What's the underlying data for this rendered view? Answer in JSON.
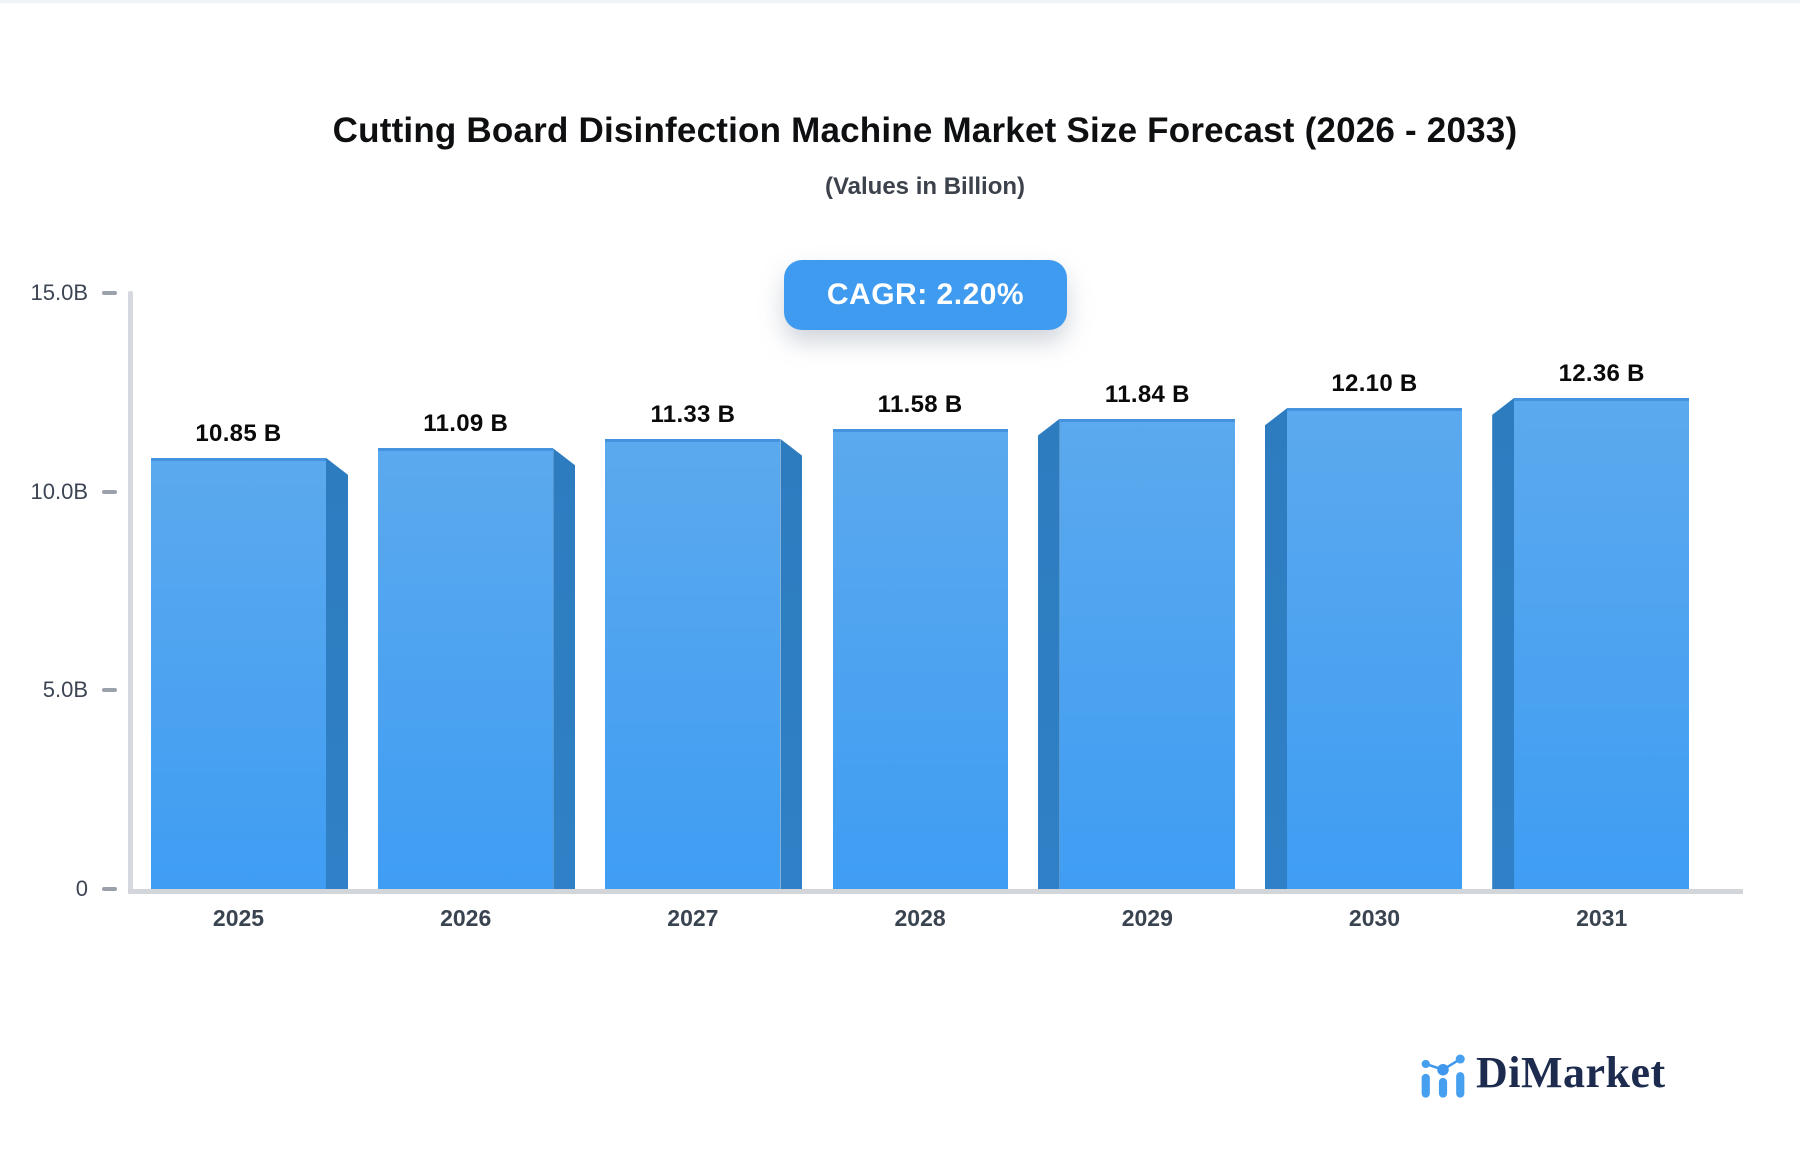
{
  "header": {
    "title": "Cutting Board Disinfection Machine Market Size Forecast (2026 - 2033)",
    "subtitle": "(Values in Billion)"
  },
  "badge": {
    "label": "CAGR: 2.20%",
    "background": "#3f9bf0",
    "text_color": "#ffffff"
  },
  "chart_data": {
    "type": "bar",
    "categories": [
      "2025",
      "2026",
      "2027",
      "2028",
      "2029",
      "2030",
      "2031"
    ],
    "values": [
      10.85,
      11.09,
      11.33,
      11.58,
      11.84,
      12.1,
      12.36
    ],
    "bar_labels": [
      "10.85 B",
      "11.09 B",
      "11.33 B",
      "11.58 B",
      "11.84 B",
      "12.10 B",
      "12.36 B"
    ],
    "title": "Cutting Board Disinfection Machine Market Size Forecast (2026 - 2033)",
    "xlabel": "",
    "ylabel": "",
    "ylim": [
      0,
      15
    ],
    "grid": false,
    "legend": false,
    "y_ticks": [
      {
        "label": "15.0B",
        "value": 15
      },
      {
        "label": "10.0B",
        "value": 10
      },
      {
        "label": "5.0B",
        "value": 5
      },
      {
        "label": "0",
        "value": 0
      }
    ],
    "colors": {
      "bar_face_top": "#5ba9ee",
      "bar_face_bottom": "#3f9df3",
      "bar_side": "#2e7cc0",
      "axis_line": "#d2d5da",
      "tick_text": "#3d4555",
      "year_text": "#3a4350",
      "value_text": "#0a0a0a"
    },
    "style": "3d-perspective-center"
  },
  "logo": {
    "text": "DiMarket",
    "text_color": "#1c2b4e",
    "icon": "bar-chart-logo-icon",
    "icon_color": "#47a0ef"
  }
}
